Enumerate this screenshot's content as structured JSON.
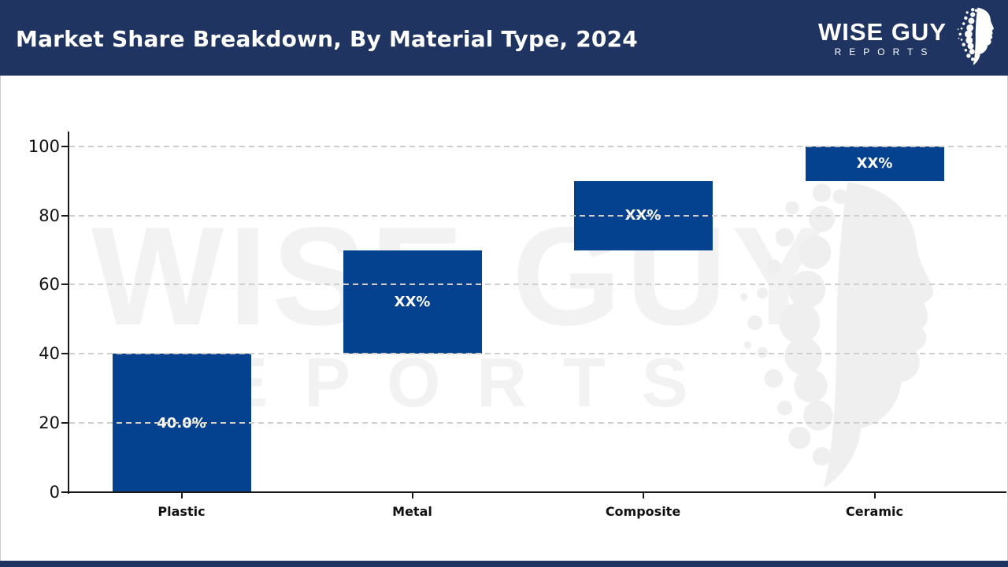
{
  "header": {
    "title": "Market Share Breakdown, By Material Type, 2024",
    "logo": {
      "line1": "WISE GUY",
      "line2": "REPORTS"
    }
  },
  "watermark": {
    "line1": "WISE GUY",
    "line2": "REPORTS"
  },
  "chart_data": {
    "type": "bar",
    "subtype": "waterfall",
    "title": "Market Share Breakdown, By Material Type, 2024",
    "categories": [
      "Plastic",
      "Metal",
      "Composite",
      "Ceramic"
    ],
    "series": [
      {
        "name": "Market Share (%)",
        "segments": [
          {
            "category": "Plastic",
            "start": 0,
            "end": 40,
            "delta": 40,
            "label": "40.0%"
          },
          {
            "category": "Metal",
            "start": 40,
            "end": 70,
            "delta": 30,
            "label": "XX%"
          },
          {
            "category": "Composite",
            "start": 70,
            "end": 90,
            "delta": 20,
            "label": "XX%"
          },
          {
            "category": "Ceramic",
            "start": 90,
            "end": 100,
            "delta": 10,
            "label": "XX%"
          }
        ]
      }
    ],
    "yticks": [
      0,
      20,
      40,
      60,
      80,
      100
    ],
    "ylim": [
      0,
      104
    ],
    "xlabel": "",
    "ylabel": "",
    "grid": "horizontal-dashed",
    "legend": "none",
    "bar_color": "#04418f",
    "bar_label_color": "#ffffff"
  },
  "colors": {
    "header_bg": "#1f3461",
    "footer_bg": "#1f3461",
    "bar": "#04418f",
    "gridline": "#cfcfcf",
    "axis": "#1a1a1a",
    "watermark": "#f2f2f2"
  }
}
